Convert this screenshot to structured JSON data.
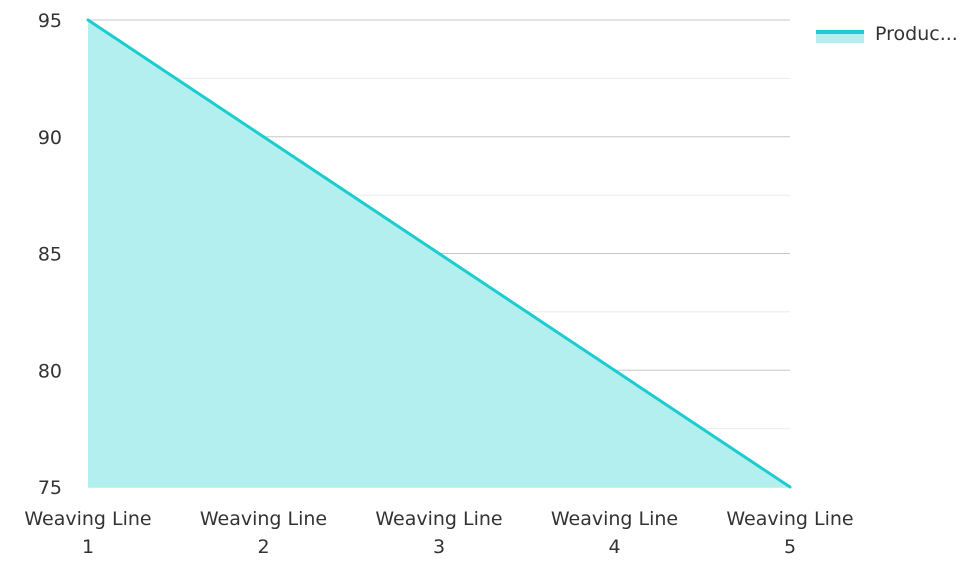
{
  "chart_data": {
    "type": "area",
    "categories": [
      "Weaving Line 1",
      "Weaving Line 2",
      "Weaving Line 3",
      "Weaving Line 4",
      "Weaving Line 5"
    ],
    "category_lines": [
      [
        "Weaving Line",
        "1"
      ],
      [
        "Weaving Line",
        "2"
      ],
      [
        "Weaving Line",
        "3"
      ],
      [
        "Weaving Line",
        "4"
      ],
      [
        "Weaving Line",
        "5"
      ]
    ],
    "series": [
      {
        "name": "Produc...",
        "values": [
          95,
          90,
          85,
          80,
          75
        ],
        "color": "#1ecbcf",
        "fill": "#b2efee"
      }
    ],
    "ylim": [
      75,
      95
    ],
    "yticks": [
      75,
      80,
      85,
      90,
      95
    ],
    "ytick_labels": [
      "75",
      "80",
      "85",
      "90",
      "95"
    ],
    "minor_grid": true,
    "grid": true,
    "legend_position": "top-right",
    "title": "",
    "xlabel": "",
    "ylabel": ""
  }
}
